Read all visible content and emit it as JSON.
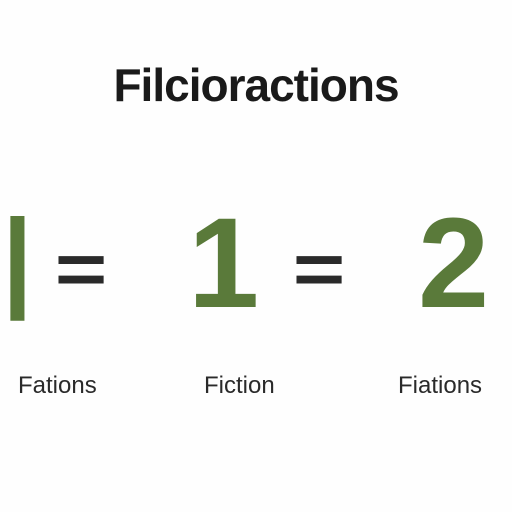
{
  "title": "Filcioractions",
  "equation": {
    "left_bar": "|",
    "equals1": "=",
    "number1": "1",
    "equals2": "=",
    "number2": "2"
  },
  "labels": {
    "l1": "Fations",
    "l2": "Fiction",
    "l3": "Fiations"
  },
  "colors": {
    "title": "#1a1a1a",
    "numbers": "#5a7a3a",
    "equals": "#2a2a2a",
    "labels": "#2a2a2a",
    "background": "#fefefe"
  },
  "typography": {
    "title_fontsize": 46,
    "number_fontsize": 128,
    "equals_fontsize": 72,
    "label_fontsize": 24
  },
  "type": "infographic"
}
